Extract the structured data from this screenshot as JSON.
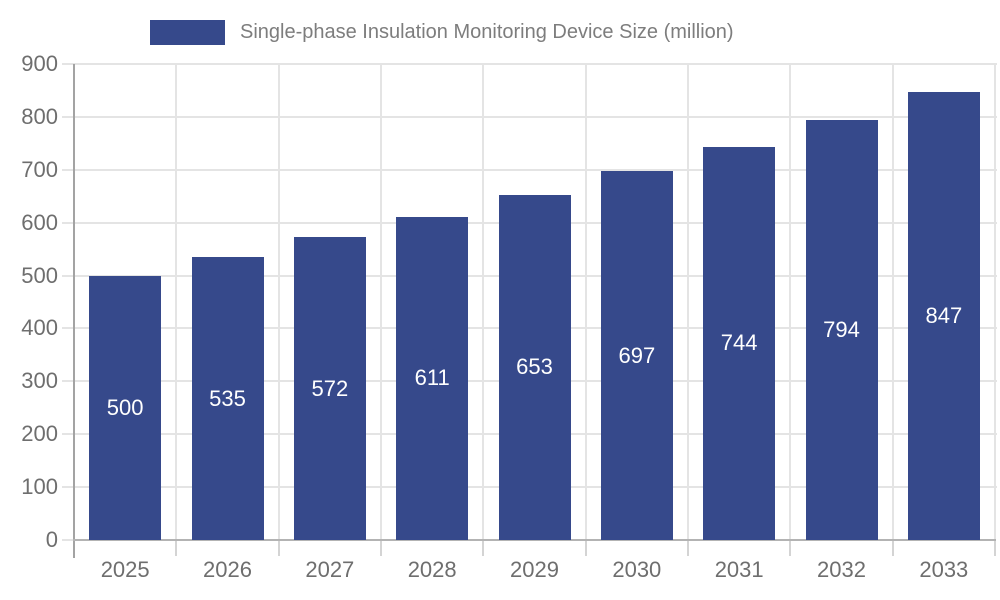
{
  "legend": {
    "label": "Single-phase Insulation Monitoring Device Size (million)"
  },
  "colors": {
    "bar": "#36498B",
    "grid": "#e4e4e4",
    "axis_y": "#a3a3a3",
    "axis_x": "#b3b3b3",
    "tick": "#d4d4d4",
    "tick_label": "#6e6e6e",
    "legend_text": "#7d7d7d",
    "value_label": "#ffffff",
    "background": "#ffffff"
  },
  "chart_data": {
    "type": "bar",
    "title": "Single-phase Insulation Monitoring Device Size (million)",
    "categories": [
      "2025",
      "2026",
      "2027",
      "2028",
      "2029",
      "2030",
      "2031",
      "2032",
      "2033"
    ],
    "values": [
      500,
      535,
      572,
      611,
      653,
      697,
      744,
      794,
      847
    ],
    "series": [
      {
        "name": "Single-phase Insulation Monitoring Device Size (million)",
        "values": [
          500,
          535,
          572,
          611,
          653,
          697,
          744,
          794,
          847
        ]
      }
    ],
    "xlabel": "",
    "ylabel": "",
    "ylim": [
      0,
      900
    ],
    "yticks": [
      0,
      100,
      200,
      300,
      400,
      500,
      600,
      700,
      800,
      900
    ],
    "grid": true,
    "legend_position": "top",
    "value_labels": "inside-center"
  }
}
